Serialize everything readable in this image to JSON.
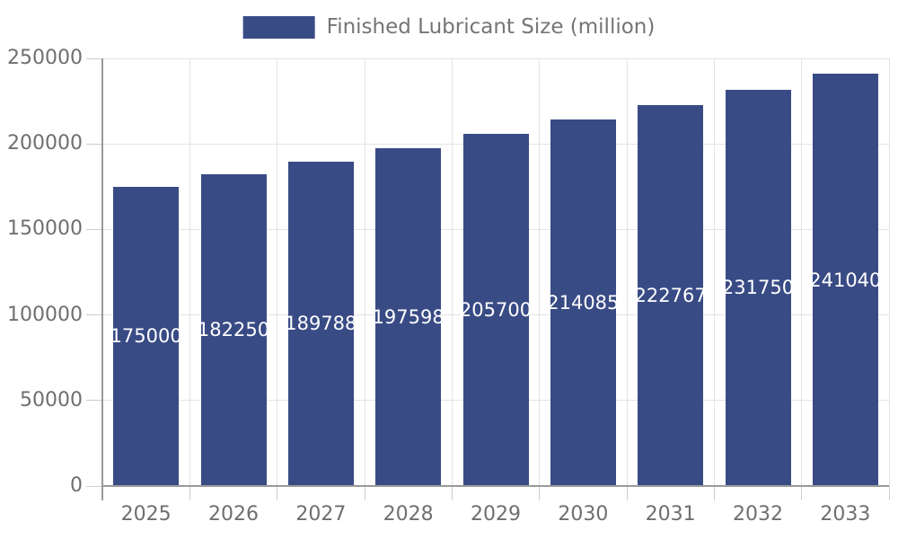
{
  "chart_data": {
    "type": "bar",
    "title": "",
    "legend": {
      "label": "Finished Lubricant Size (million)",
      "position": "top-center"
    },
    "categories": [
      "2025",
      "2026",
      "2027",
      "2028",
      "2029",
      "2030",
      "2031",
      "2032",
      "2033"
    ],
    "series": [
      {
        "name": "Finished Lubricant Size (million)",
        "values": [
          175000,
          182250,
          189788,
          197598,
          205700,
          214085,
          222767,
          231750,
          241040
        ]
      }
    ],
    "bar_labels": [
      "175000",
      "182250",
      "189788",
      "197598",
      "205700",
      "214085",
      "222767",
      "231750",
      "241040"
    ],
    "xlabel": "",
    "ylabel": "",
    "ylim": [
      0,
      250000
    ],
    "yticks": [
      0,
      50000,
      100000,
      150000,
      200000,
      250000
    ],
    "ytick_labels": [
      "0",
      "50000",
      "100000",
      "150000",
      "200000",
      "250000"
    ],
    "grid": "both",
    "legend_swatch": "bar-color",
    "colors": {
      "bar": "#394B85",
      "axis": "#999999",
      "grid": "#e3e3e3",
      "tick": "#cccccc",
      "tick_label": "#6f6f6f",
      "legend_text": "#757575",
      "bar_label": "#ffffff",
      "background": "#ffffff"
    }
  }
}
